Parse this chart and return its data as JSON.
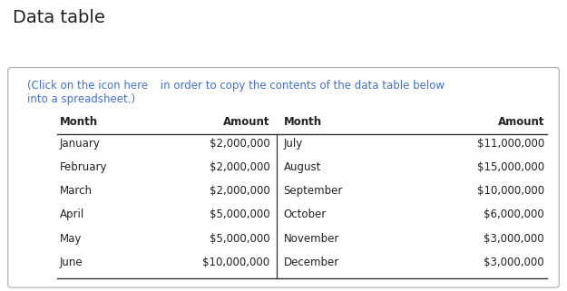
{
  "title": "Data table",
  "title_fontsize": 14,
  "title_color": "#222222",
  "instruction_color": "#4472C4",
  "instruction_fontsize": 8.5,
  "col_headers": [
    "Month",
    "Amount",
    "Month",
    "Amount"
  ],
  "left_months": [
    "January",
    "February",
    "March",
    "April",
    "May",
    "June"
  ],
  "left_amounts": [
    "$2,000,000",
    "$2,000,000",
    "$2,000,000",
    "$5,000,000",
    "$5,000,000",
    "$10,000,000"
  ],
  "right_months": [
    "July",
    "August",
    "September",
    "October",
    "November",
    "December"
  ],
  "right_amounts": [
    "$11,000,000",
    "$15,000,000",
    "$10,000,000",
    "$6,000,000",
    "$3,000,000",
    "$3,000,000"
  ],
  "bg_color": "#ffffff",
  "box_edge_color": "#aaaaaa",
  "header_fontsize": 8.5,
  "data_fontsize": 8.5,
  "font_family": "DejaVu Sans",
  "line_color": "#333333",
  "text_color": "#222222"
}
